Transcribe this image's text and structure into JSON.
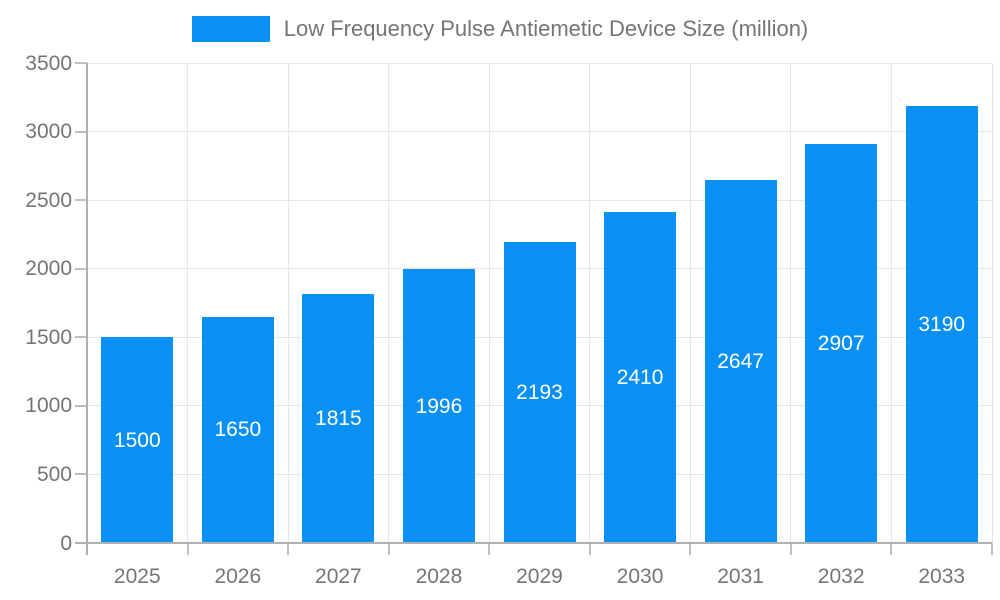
{
  "legend": {
    "label": "Low Frequency Pulse Antiemetic Device Size (million)"
  },
  "chart_data": {
    "type": "bar",
    "title": "Low Frequency Pulse Antiemetic Device Size (million)",
    "series_name": "Low Frequency Pulse Antiemetic Device Size (million)",
    "categories": [
      "2025",
      "2026",
      "2027",
      "2028",
      "2029",
      "2030",
      "2031",
      "2032",
      "2033"
    ],
    "values": [
      1500,
      1650,
      1815,
      1996,
      2193,
      2410,
      2647,
      2907,
      3190
    ],
    "xlabel": "",
    "ylabel": "",
    "ylim": [
      0,
      3500
    ],
    "yticks": [
      0,
      500,
      1000,
      1500,
      2000,
      2500,
      3000,
      3500
    ],
    "grid": true,
    "legend_position": "top-center",
    "bar_labels_inside": true
  },
  "colors": {
    "bar": "#0990f5",
    "grid_line": "#e6e6e6",
    "axis_line": "#b0b0b0",
    "tick": "#c0c0c0",
    "axis_text": "#757575",
    "bar_label": "#ffffff",
    "legend_text": "#757575",
    "background": "#ffffff"
  }
}
